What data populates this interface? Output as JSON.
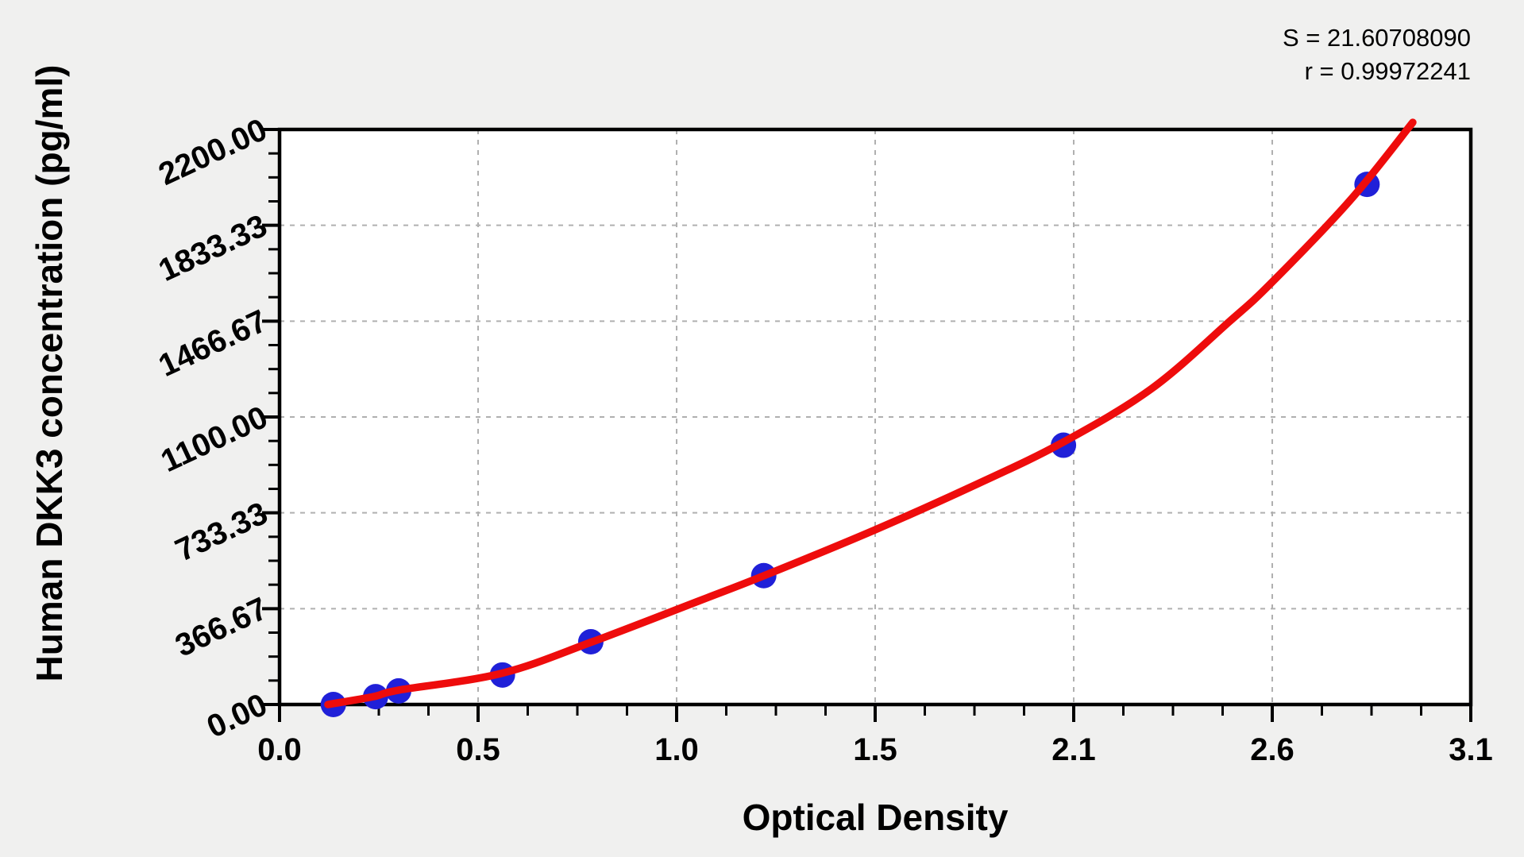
{
  "header_stats": {
    "s": "S = 21.60708090",
    "r": "r = 0.99972241"
  },
  "chart_data": {
    "type": "scatter",
    "title": "",
    "xlabel": "Optical Density",
    "ylabel": "Human DKK3 concentration (pg/ml)",
    "x_axis": {
      "min": 0,
      "max": 3.1,
      "tick_labels": [
        "0.0",
        "0.5",
        "1.0",
        "1.5",
        "2.1",
        "2.6",
        "3.1"
      ],
      "minor_divisions": 4
    },
    "y_axis": {
      "min": 0,
      "max": 2200,
      "tick_labels": [
        "0.00",
        "366.67",
        "733.33",
        "1100.00",
        "1466.67",
        "1833.33",
        "2200.00"
      ],
      "minor_divisions": 4
    },
    "grid": {
      "show": true,
      "style": "dashed",
      "color": "#b0b0b0"
    },
    "legend": null,
    "fit_stats": {
      "S": 21.6070809,
      "r": 0.99972241
    },
    "colors": {
      "points": "#2020d8",
      "curve": "#ee0c0c",
      "frame": "#000000",
      "plot_bg": "#ffffff",
      "page_bg": "#f0f0ef"
    },
    "series": [
      {
        "name": "standard-points",
        "type": "scatter",
        "color": "#2020d8",
        "points": [
          [
            0.14,
            0
          ],
          [
            0.25,
            30
          ],
          [
            0.31,
            52
          ],
          [
            0.58,
            113
          ],
          [
            0.81,
            240
          ],
          [
            1.26,
            493
          ],
          [
            2.04,
            992
          ],
          [
            2.83,
            1990
          ]
        ]
      },
      {
        "name": "fitted-curve",
        "type": "line",
        "color": "#ee0c0c",
        "points": [
          [
            0.126,
            0
          ],
          [
            0.244,
            30
          ],
          [
            0.31,
            55
          ],
          [
            0.577,
            119
          ],
          [
            0.814,
            240
          ],
          [
            1.091,
            396
          ],
          [
            1.261,
            493
          ],
          [
            1.546,
            666
          ],
          [
            1.815,
            843
          ],
          [
            2.036,
            1001
          ],
          [
            2.269,
            1208
          ],
          [
            2.471,
            1464
          ],
          [
            2.579,
            1610
          ],
          [
            2.786,
            1929
          ],
          [
            2.949,
            2227
          ]
        ]
      }
    ]
  }
}
